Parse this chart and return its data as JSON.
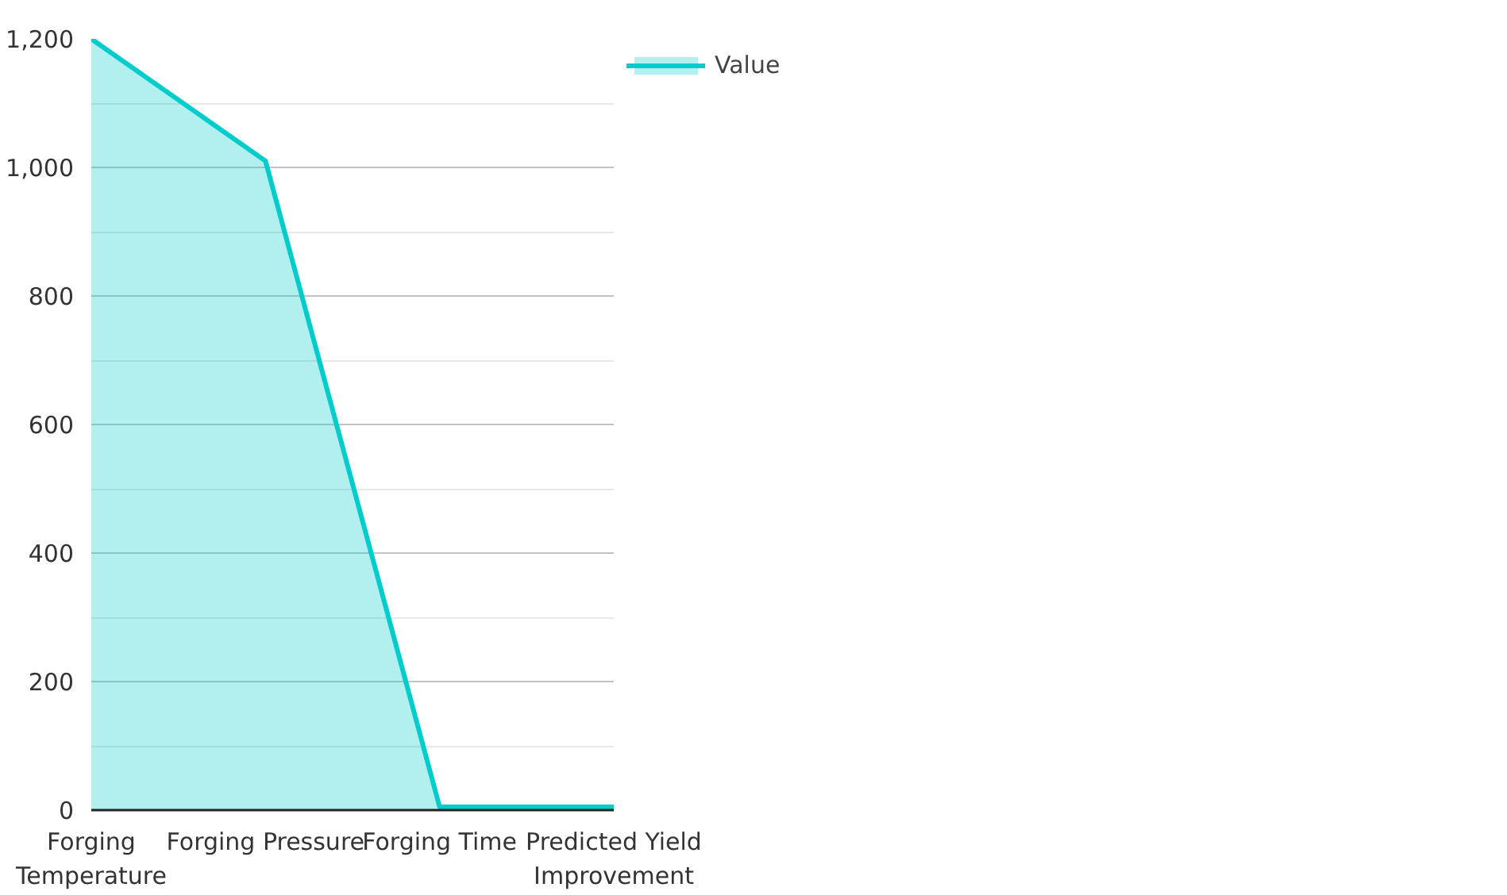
{
  "chart_data": {
    "type": "area",
    "categories": [
      "Forging Temperature",
      "Forging Pressure",
      "Forging Time",
      "Predicted Yield Improvement"
    ],
    "series": [
      {
        "name": "Value",
        "color": "#00cccc",
        "values": [
          1200,
          1010,
          5,
          5
        ]
      }
    ],
    "ylim": [
      0,
      1200
    ],
    "yticks": [
      0,
      200,
      400,
      600,
      800,
      {
        "value": 1000,
        "label": "1,000"
      },
      {
        "value": 1200,
        "label": "1,200"
      }
    ],
    "grid": "y",
    "legend": "top right"
  }
}
